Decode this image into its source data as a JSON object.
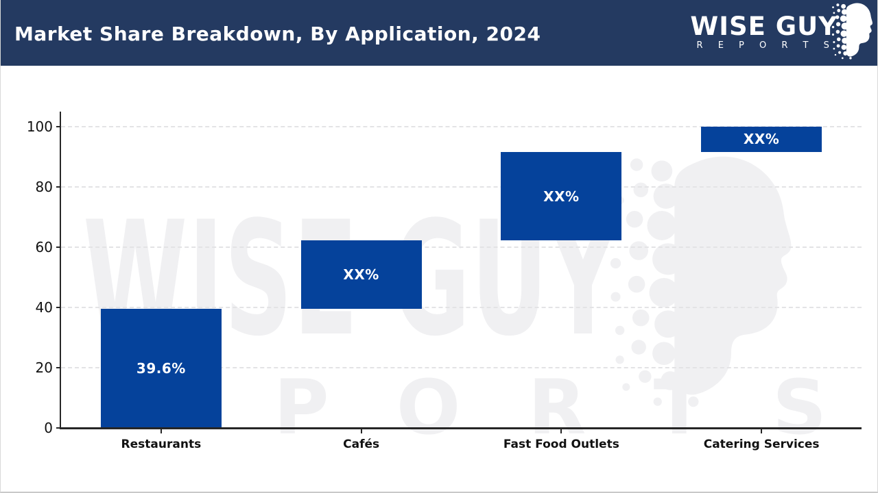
{
  "header": {
    "title": "Market Share Breakdown, By Application, 2024",
    "logo": {
      "line1": "WISE GUY",
      "line2": "R E P O R T S",
      "face_icon": "dotted-head-profile"
    }
  },
  "watermark": {
    "line1": "WISE GUY",
    "line2": "P O R T S"
  },
  "chart_data": {
    "type": "bar",
    "subtype": "waterfall",
    "title": "Market Share Breakdown, By Application, 2024",
    "categories": [
      "Restaurants",
      "Cafés",
      "Fast Food Outlets",
      "Catering Services"
    ],
    "segments": [
      {
        "start": 0,
        "end": 39.6,
        "label": "39.6%"
      },
      {
        "start": 39.6,
        "end": 62.2,
        "label": "XX%"
      },
      {
        "start": 62.2,
        "end": 91.6,
        "label": "XX%"
      },
      {
        "start": 91.6,
        "end": 100,
        "label": "XX%"
      }
    ],
    "values": [
      39.6,
      22.6,
      29.4,
      8.4
    ],
    "yticks": [
      0,
      20,
      40,
      60,
      80,
      100
    ],
    "ylim": [
      0,
      105
    ],
    "xlabel": "",
    "ylabel": "",
    "grid": "horizontal-dashed",
    "legend": "none",
    "bar_color": "#05429B",
    "bar_label_color": "#FFFFFF",
    "axis_color": "#262626",
    "header_color": "#243A61"
  }
}
